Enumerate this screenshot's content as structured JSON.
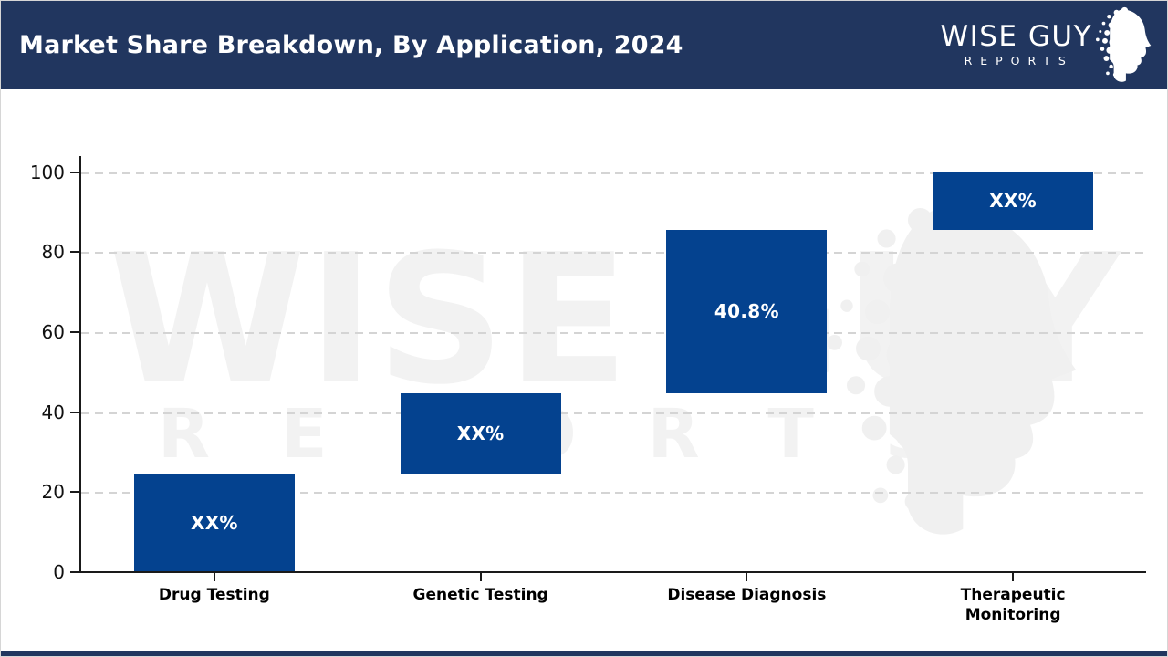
{
  "header": {
    "title": "Market Share Breakdown, By Application, 2024",
    "logo": {
      "name": "WISE GUY",
      "sub": "REPORTS"
    }
  },
  "watermark": {
    "line1": "WISE GUY",
    "line2": "REPORTS"
  },
  "colors": {
    "header_bg": "#21365f",
    "footer_bg": "#21365f",
    "bar": "#04428f",
    "bar_label": "#ffffff",
    "grid": "#d4d4d4",
    "axis": "#1a1a1a",
    "watermark": "#f2f2f2"
  },
  "chart_data": {
    "type": "bar",
    "subtype": "waterfall-floating-bars",
    "title": "Market Share Breakdown, By Application, 2024",
    "xlabel": "",
    "ylabel": "",
    "categories": [
      "Drug Testing",
      "Genetic Testing",
      "Disease Diagnosis",
      "Therapeutic Monitoring"
    ],
    "bars": [
      {
        "category": "Drug Testing",
        "start": 0,
        "end": 24.4,
        "value_label": "XX%"
      },
      {
        "category": "Genetic Testing",
        "start": 24.4,
        "end": 44.8,
        "value_label": "XX%"
      },
      {
        "category": "Disease Diagnosis",
        "start": 44.8,
        "end": 85.6,
        "value_label": "40.8%"
      },
      {
        "category": "Therapeutic Monitoring",
        "start": 85.6,
        "end": 100,
        "value_label": "XX%"
      }
    ],
    "yticks": [
      0,
      20,
      40,
      60,
      80,
      100
    ],
    "ylim": [
      0,
      104
    ],
    "grid": "horizontal-dashed",
    "legend": "none"
  }
}
